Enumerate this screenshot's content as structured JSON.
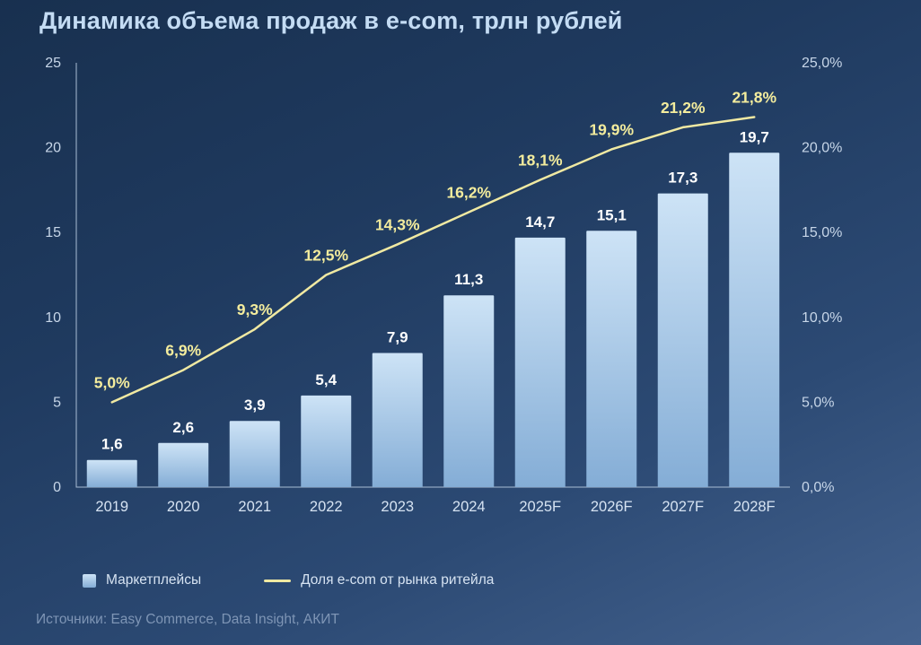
{
  "title": "Динамика объема продаж в e-com, трлн рублей",
  "legend": {
    "bars": "Маркетплейсы",
    "line": "Доля e-com от рынка ритейла"
  },
  "source": "Источники: Easy Commerce, Data Insight, АКИТ",
  "chart_data": {
    "type": "bar",
    "subtype": "bar+line combo",
    "title": "Динамика объема продаж в e-com, трлн рублей",
    "categories": [
      "2019",
      "2020",
      "2021",
      "2022",
      "2023",
      "2024",
      "2025F",
      "2026F",
      "2027F",
      "2028F"
    ],
    "series": [
      {
        "name": "Маркетплейсы",
        "type": "bar",
        "axis": "left",
        "values": [
          1.6,
          2.6,
          3.9,
          5.4,
          7.9,
          11.3,
          14.7,
          15.1,
          17.3,
          19.7
        ],
        "labels": [
          "1,6",
          "2,6",
          "3,9",
          "5,4",
          "7,9",
          "11,3",
          "14,7",
          "15,1",
          "17,3",
          "19,7"
        ]
      },
      {
        "name": "Доля e-com от рынка ритейла",
        "type": "line",
        "axis": "right",
        "values": [
          5.0,
          6.9,
          9.3,
          12.5,
          14.3,
          16.2,
          18.1,
          19.9,
          21.2,
          21.8
        ],
        "labels": [
          "5,0%",
          "6,9%",
          "9,3%",
          "12,5%",
          "14,3%",
          "16,2%",
          "18,1%",
          "19,9%",
          "21,2%",
          "21,8%"
        ]
      }
    ],
    "left_axis": {
      "ticks": [
        "0",
        "5",
        "10",
        "15",
        "20",
        "25"
      ],
      "min": 0,
      "max": 25,
      "unit": "трлн рублей"
    },
    "right_axis": {
      "ticks": [
        "0,0%",
        "5,0%",
        "10,0%",
        "15,0%",
        "20,0%",
        "25,0%"
      ],
      "min": 0,
      "max": 25,
      "unit": "%"
    },
    "legend_position": "bottom",
    "grid": false,
    "colors": {
      "bar_top": "#cde3f6",
      "bar_bottom": "#84add6",
      "line": "#f0e9a2",
      "axis": "#a9bdd4",
      "bar_label": "#ffffff",
      "line_label": "#f3ec9d",
      "background": "#1f3a5f"
    }
  }
}
